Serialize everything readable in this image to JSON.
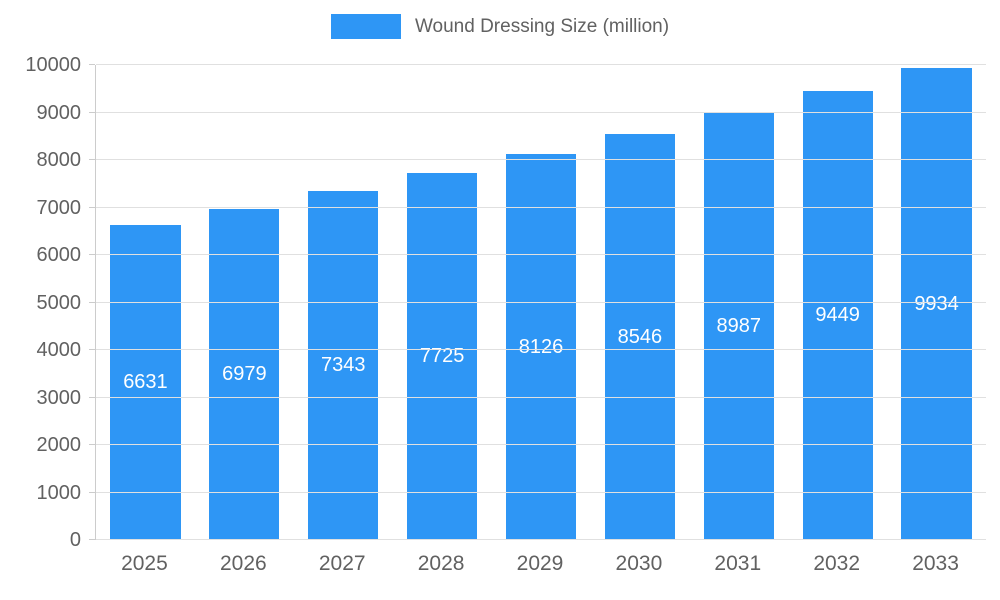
{
  "chart_data": {
    "type": "bar",
    "title": "",
    "legend": {
      "position": "top",
      "label": "Wound Dressing Size (million)"
    },
    "categories": [
      "2025",
      "2026",
      "2027",
      "2028",
      "2029",
      "2030",
      "2031",
      "2032",
      "2033"
    ],
    "series": [
      {
        "name": "Wound Dressing Size (million)",
        "values": [
          6631,
          6979,
          7343,
          7725,
          8126,
          8546,
          8987,
          9449,
          9934
        ]
      }
    ],
    "xlabel": "",
    "ylabel": "",
    "ylim": [
      0,
      10000
    ],
    "ytick_step": 1000,
    "grid": true,
    "data_labels_inside_bars": true,
    "colors": {
      "bar": "#2e96f5",
      "axis_text": "#616161",
      "gridline": "#e0e0e0",
      "axis_line": "#cccccc",
      "bar_label_text": "#ffffff",
      "background": "#ffffff"
    }
  }
}
